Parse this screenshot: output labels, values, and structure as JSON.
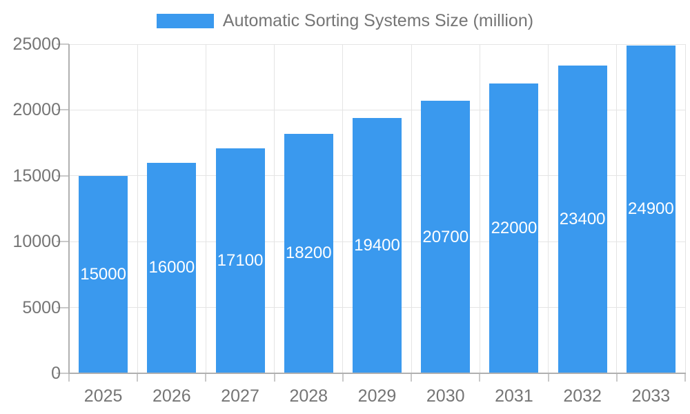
{
  "legend": {
    "label": "Automatic Sorting Systems Size (million)"
  },
  "colors": {
    "bar": "#3a99ee",
    "bar_label": "#ffffff",
    "axis_text": "#757575",
    "grid": "#e4e4e4",
    "axis_line": "#b0b0b0",
    "tick": "#c9c9c9",
    "background": "#ffffff"
  },
  "chart_data": {
    "type": "bar",
    "title": "",
    "categories": [
      "2025",
      "2026",
      "2027",
      "2028",
      "2029",
      "2030",
      "2031",
      "2032",
      "2033"
    ],
    "values": [
      15000,
      16000,
      17100,
      18200,
      19400,
      20700,
      22000,
      23400,
      24900
    ],
    "value_labels": [
      "15000",
      "16000",
      "17100",
      "18200",
      "19400",
      "20700",
      "22000",
      "23400",
      "24900"
    ],
    "series_name": "Automatic Sorting Systems Size (million)",
    "legend_entries": [
      "Automatic Sorting Systems Size (million)"
    ],
    "legend_position": "top",
    "xlabel": "",
    "ylabel": "",
    "ylim": [
      0,
      25000
    ],
    "yticks": [
      0,
      5000,
      10000,
      15000,
      20000,
      25000
    ],
    "ytick_labels": [
      "0",
      "5000",
      "10000",
      "15000",
      "20000",
      "25000"
    ],
    "grid": true,
    "value_labels_inside_bars": true
  }
}
